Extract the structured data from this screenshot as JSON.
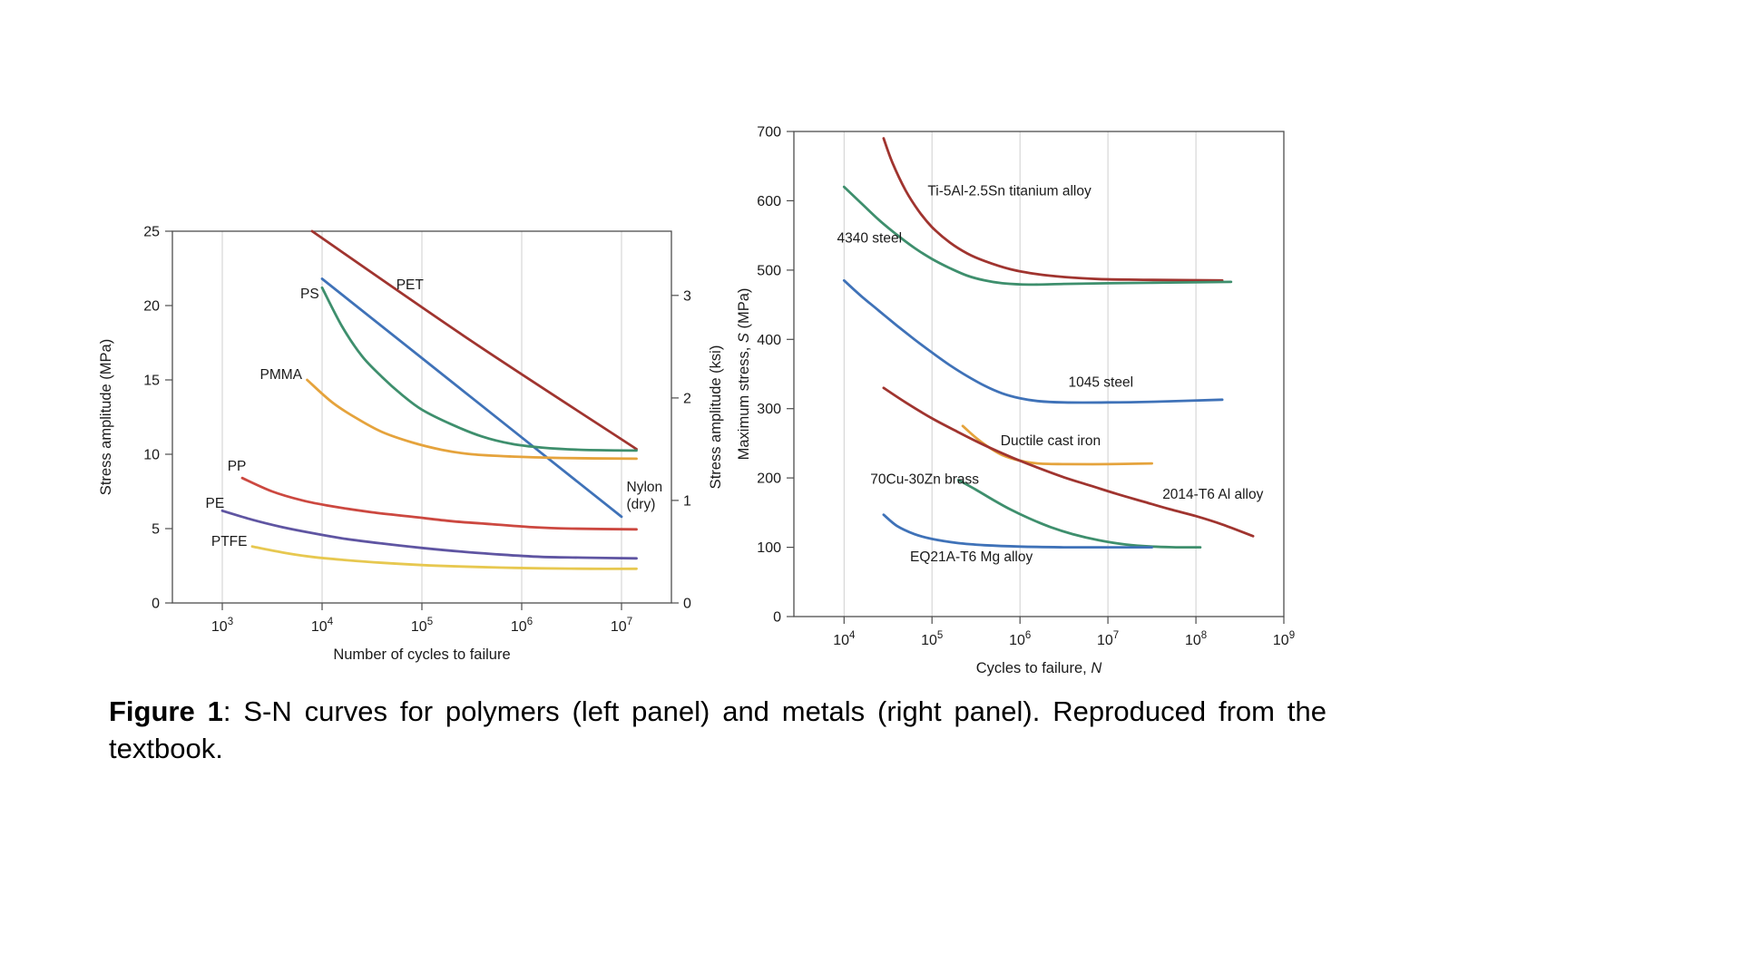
{
  "figure": {
    "caption_bold": "Figure 1",
    "caption_rest": ": S-N curves for polymers (left panel) and metals (right panel).  Reproduced from the textbook."
  },
  "colors": {
    "dark_red": "#a0342f",
    "red": "#cc4840",
    "green": "#3e8f6d",
    "blue": "#3f72b8",
    "orange": "#e5a33c",
    "purple": "#5f55a2",
    "yellow": "#e7c850",
    "axis": "#4d4d4d",
    "grid": "#cfcfcf"
  },
  "chart_data": [
    {
      "id": "polymers",
      "type": "line",
      "title": "S-N curves for polymers",
      "legend": "inline-labels",
      "grid": "vertical-decades",
      "x_axis": {
        "scale": "log",
        "min_exp": 2.5,
        "max_exp": 7.5,
        "tick_exps": [
          3,
          4,
          5,
          6,
          7
        ],
        "label_parts": [
          {
            "text": "Number of cycles to failure"
          }
        ]
      },
      "y_axis": {
        "min": 0,
        "max": 25,
        "ticks": [
          0,
          5,
          10,
          15,
          20,
          25
        ],
        "label_parts": [
          {
            "text": "Stress amplitude (MPa)"
          }
        ]
      },
      "y2_axis": {
        "ticks": [
          0,
          1,
          2,
          3
        ],
        "mpa_per_unit": 6.8948,
        "label_parts": [
          {
            "text": "Stress amplitude (ksi)"
          }
        ]
      },
      "series": [
        {
          "name": "PET",
          "color": "#a0342f",
          "points": [
            [
              3.9,
              25.0
            ],
            [
              5.5,
              17.6
            ],
            [
              7.15,
              10.35
            ]
          ],
          "label": {
            "text": "PET",
            "x_exp": 4.88,
            "y": 21.1,
            "anchor": "middle"
          }
        },
        {
          "name": "Nylon (dry)",
          "color": "#3f72b8",
          "points": [
            [
              4.0,
              21.8
            ],
            [
              5.5,
              13.8
            ],
            [
              7.0,
              5.8
            ]
          ],
          "label": {
            "text": "Nylon\n(dry)",
            "x_exp": 7.05,
            "y": 7.5,
            "anchor": "start"
          }
        },
        {
          "name": "PS",
          "color": "#3e8f6d",
          "points": [
            [
              4.0,
              21.2
            ],
            [
              4.2,
              18.6
            ],
            [
              4.4,
              16.6
            ],
            [
              4.6,
              15.2
            ],
            [
              4.8,
              14.0
            ],
            [
              5.0,
              13.0
            ],
            [
              5.3,
              12.0
            ],
            [
              5.6,
              11.2
            ],
            [
              5.9,
              10.7
            ],
            [
              6.2,
              10.45
            ],
            [
              6.6,
              10.3
            ],
            [
              7.15,
              10.25
            ]
          ],
          "label": {
            "text": "PS",
            "x_exp": 3.97,
            "y": 20.5,
            "anchor": "end"
          }
        },
        {
          "name": "PMMA",
          "color": "#e5a33c",
          "points": [
            [
              3.85,
              15.0
            ],
            [
              4.1,
              13.5
            ],
            [
              4.35,
              12.4
            ],
            [
              4.6,
              11.5
            ],
            [
              4.9,
              10.8
            ],
            [
              5.2,
              10.3
            ],
            [
              5.5,
              10.0
            ],
            [
              5.9,
              9.85
            ],
            [
              6.4,
              9.75
            ],
            [
              7.15,
              9.7
            ]
          ],
          "label": {
            "text": "PMMA",
            "x_exp": 3.8,
            "y": 15.05,
            "anchor": "end"
          }
        },
        {
          "name": "PP",
          "color": "#cc4840",
          "points": [
            [
              3.2,
              8.4
            ],
            [
              3.5,
              7.5
            ],
            [
              3.8,
              6.9
            ],
            [
              4.1,
              6.5
            ],
            [
              4.5,
              6.1
            ],
            [
              4.9,
              5.8
            ],
            [
              5.3,
              5.5
            ],
            [
              5.7,
              5.3
            ],
            [
              6.1,
              5.1
            ],
            [
              6.5,
              5.0
            ],
            [
              7.15,
              4.95
            ]
          ],
          "label": {
            "text": "PP",
            "x_exp": 3.24,
            "y": 8.9,
            "anchor": "end"
          }
        },
        {
          "name": "PE",
          "color": "#5f55a2",
          "points": [
            [
              3.0,
              6.2
            ],
            [
              3.3,
              5.6
            ],
            [
              3.6,
              5.1
            ],
            [
              3.9,
              4.7
            ],
            [
              4.2,
              4.35
            ],
            [
              4.6,
              4.0
            ],
            [
              5.0,
              3.7
            ],
            [
              5.4,
              3.45
            ],
            [
              5.8,
              3.25
            ],
            [
              6.2,
              3.1
            ],
            [
              6.6,
              3.05
            ],
            [
              7.15,
              3.0
            ]
          ],
          "label": {
            "text": "PE",
            "x_exp": 3.02,
            "y": 6.4,
            "anchor": "end"
          }
        },
        {
          "name": "PTFE",
          "color": "#e7c850",
          "points": [
            [
              3.3,
              3.8
            ],
            [
              3.6,
              3.4
            ],
            [
              3.9,
              3.1
            ],
            [
              4.2,
              2.9
            ],
            [
              4.6,
              2.7
            ],
            [
              5.0,
              2.55
            ],
            [
              5.4,
              2.45
            ],
            [
              5.8,
              2.38
            ],
            [
              6.2,
              2.33
            ],
            [
              6.7,
              2.3
            ],
            [
              7.15,
              2.3
            ]
          ],
          "label": {
            "text": "PTFE",
            "x_exp": 3.25,
            "y": 3.85,
            "anchor": "end"
          }
        }
      ]
    },
    {
      "id": "metals",
      "type": "line",
      "title": "S-N curves for metals",
      "legend": "inline-labels",
      "grid": "vertical-decades",
      "x_axis": {
        "scale": "log",
        "min_exp": 3.43,
        "max_exp": 9,
        "tick_exps": [
          4,
          5,
          6,
          7,
          8,
          9
        ],
        "label_parts": [
          {
            "text": "Cycles to failure, "
          },
          {
            "text": "N",
            "italic": true
          }
        ]
      },
      "y_axis": {
        "min": 0,
        "max": 700,
        "ticks": [
          0,
          100,
          200,
          300,
          400,
          500,
          600,
          700
        ],
        "label_parts": [
          {
            "text": "Maximum stress, "
          },
          {
            "text": "S",
            "italic": true
          },
          {
            "text": " (MPa)"
          }
        ]
      },
      "series": [
        {
          "name": "Ti-5Al-2.5Sn titanium alloy",
          "color": "#a0342f",
          "points": [
            [
              4.45,
              690
            ],
            [
              4.55,
              655
            ],
            [
              4.7,
              615
            ],
            [
              4.85,
              585
            ],
            [
              5.0,
              562
            ],
            [
              5.2,
              540
            ],
            [
              5.4,
              524
            ],
            [
              5.6,
              513
            ],
            [
              5.9,
              501
            ],
            [
              6.2,
              494
            ],
            [
              6.5,
              490
            ],
            [
              6.9,
              487
            ],
            [
              7.4,
              486
            ],
            [
              8.3,
              485
            ]
          ],
          "label": {
            "text": "Ti-5Al-2.5Sn titanium alloy",
            "x_exp": 4.95,
            "y": 608,
            "anchor": "start"
          }
        },
        {
          "name": "4340 steel",
          "color": "#3e8f6d",
          "points": [
            [
              4.0,
              620
            ],
            [
              4.2,
              596
            ],
            [
              4.4,
              572
            ],
            [
              4.6,
              551
            ],
            [
              4.8,
              532
            ],
            [
              5.0,
              516
            ],
            [
              5.2,
              503
            ],
            [
              5.4,
              492
            ],
            [
              5.6,
              485
            ],
            [
              5.8,
              481
            ],
            [
              6.1,
              479
            ],
            [
              6.5,
              480
            ],
            [
              7.0,
              481
            ],
            [
              7.7,
              482
            ],
            [
              8.4,
              483
            ]
          ],
          "label": {
            "text": "4340 steel",
            "x_exp": 3.92,
            "y": 540,
            "anchor": "start"
          }
        },
        {
          "name": "1045 steel",
          "color": "#3f72b8",
          "points": [
            [
              4.0,
              485
            ],
            [
              4.2,
              462
            ],
            [
              4.4,
              441
            ],
            [
              4.6,
              420
            ],
            [
              4.8,
              400
            ],
            [
              5.0,
              381
            ],
            [
              5.2,
              363
            ],
            [
              5.4,
              347
            ],
            [
              5.6,
              333
            ],
            [
              5.8,
              322
            ],
            [
              6.0,
              315
            ],
            [
              6.2,
              311
            ],
            [
              6.5,
              309
            ],
            [
              7.0,
              309
            ],
            [
              7.5,
              310
            ],
            [
              8.3,
              313
            ]
          ],
          "label": {
            "text": "1045 steel",
            "x_exp": 6.55,
            "y": 332,
            "anchor": "start"
          }
        },
        {
          "name": "Ductile cast iron",
          "color": "#e5a33c",
          "points": [
            [
              5.35,
              275
            ],
            [
              5.5,
              258
            ],
            [
              5.65,
              244
            ],
            [
              5.8,
              233
            ],
            [
              6.0,
              225
            ],
            [
              6.2,
              221
            ],
            [
              6.5,
              220
            ],
            [
              7.0,
              220
            ],
            [
              7.5,
              221
            ]
          ],
          "label": {
            "text": "Ductile cast iron",
            "x_exp": 5.78,
            "y": 247,
            "anchor": "start"
          }
        },
        {
          "name": "2014-T6 Al alloy",
          "color": "#a0342f",
          "points": [
            [
              4.45,
              330
            ],
            [
              4.7,
              309
            ],
            [
              5.0,
              286
            ],
            [
              5.3,
              266
            ],
            [
              5.6,
              247
            ],
            [
              5.9,
              230
            ],
            [
              6.2,
              215
            ],
            [
              6.5,
              201
            ],
            [
              6.8,
              189
            ],
            [
              7.1,
              177
            ],
            [
              7.4,
              166
            ],
            [
              7.7,
              155
            ],
            [
              8.0,
              145
            ],
            [
              8.3,
              133
            ],
            [
              8.65,
              116
            ]
          ],
          "label": {
            "text": "2014-T6 Al alloy",
            "x_exp": 7.62,
            "y": 170,
            "anchor": "start"
          }
        },
        {
          "name": "70Cu-30Zn brass",
          "color": "#3e8f6d",
          "points": [
            [
              5.3,
              197
            ],
            [
              5.5,
              183
            ],
            [
              5.7,
              168
            ],
            [
              5.9,
              154
            ],
            [
              6.1,
              142
            ],
            [
              6.35,
              129
            ],
            [
              6.6,
              119
            ],
            [
              6.9,
              110
            ],
            [
              7.2,
              104
            ],
            [
              7.5,
              101
            ],
            [
              7.8,
              100
            ],
            [
              8.05,
              100
            ]
          ],
          "label": {
            "text": "70Cu-30Zn brass",
            "x_exp": 4.3,
            "y": 192,
            "anchor": "start"
          }
        },
        {
          "name": "EQ21A-T6 Mg alloy",
          "color": "#3f72b8",
          "points": [
            [
              4.45,
              147
            ],
            [
              4.6,
              131
            ],
            [
              4.8,
              119
            ],
            [
              5.0,
              112
            ],
            [
              5.3,
              106
            ],
            [
              5.6,
              103
            ],
            [
              6.0,
              101
            ],
            [
              6.5,
              100
            ],
            [
              7.0,
              100
            ],
            [
              7.5,
              100
            ]
          ],
          "label": {
            "text": "EQ21A-T6 Mg alloy",
            "x_exp": 4.75,
            "y": 80,
            "anchor": "start"
          }
        }
      ]
    }
  ]
}
